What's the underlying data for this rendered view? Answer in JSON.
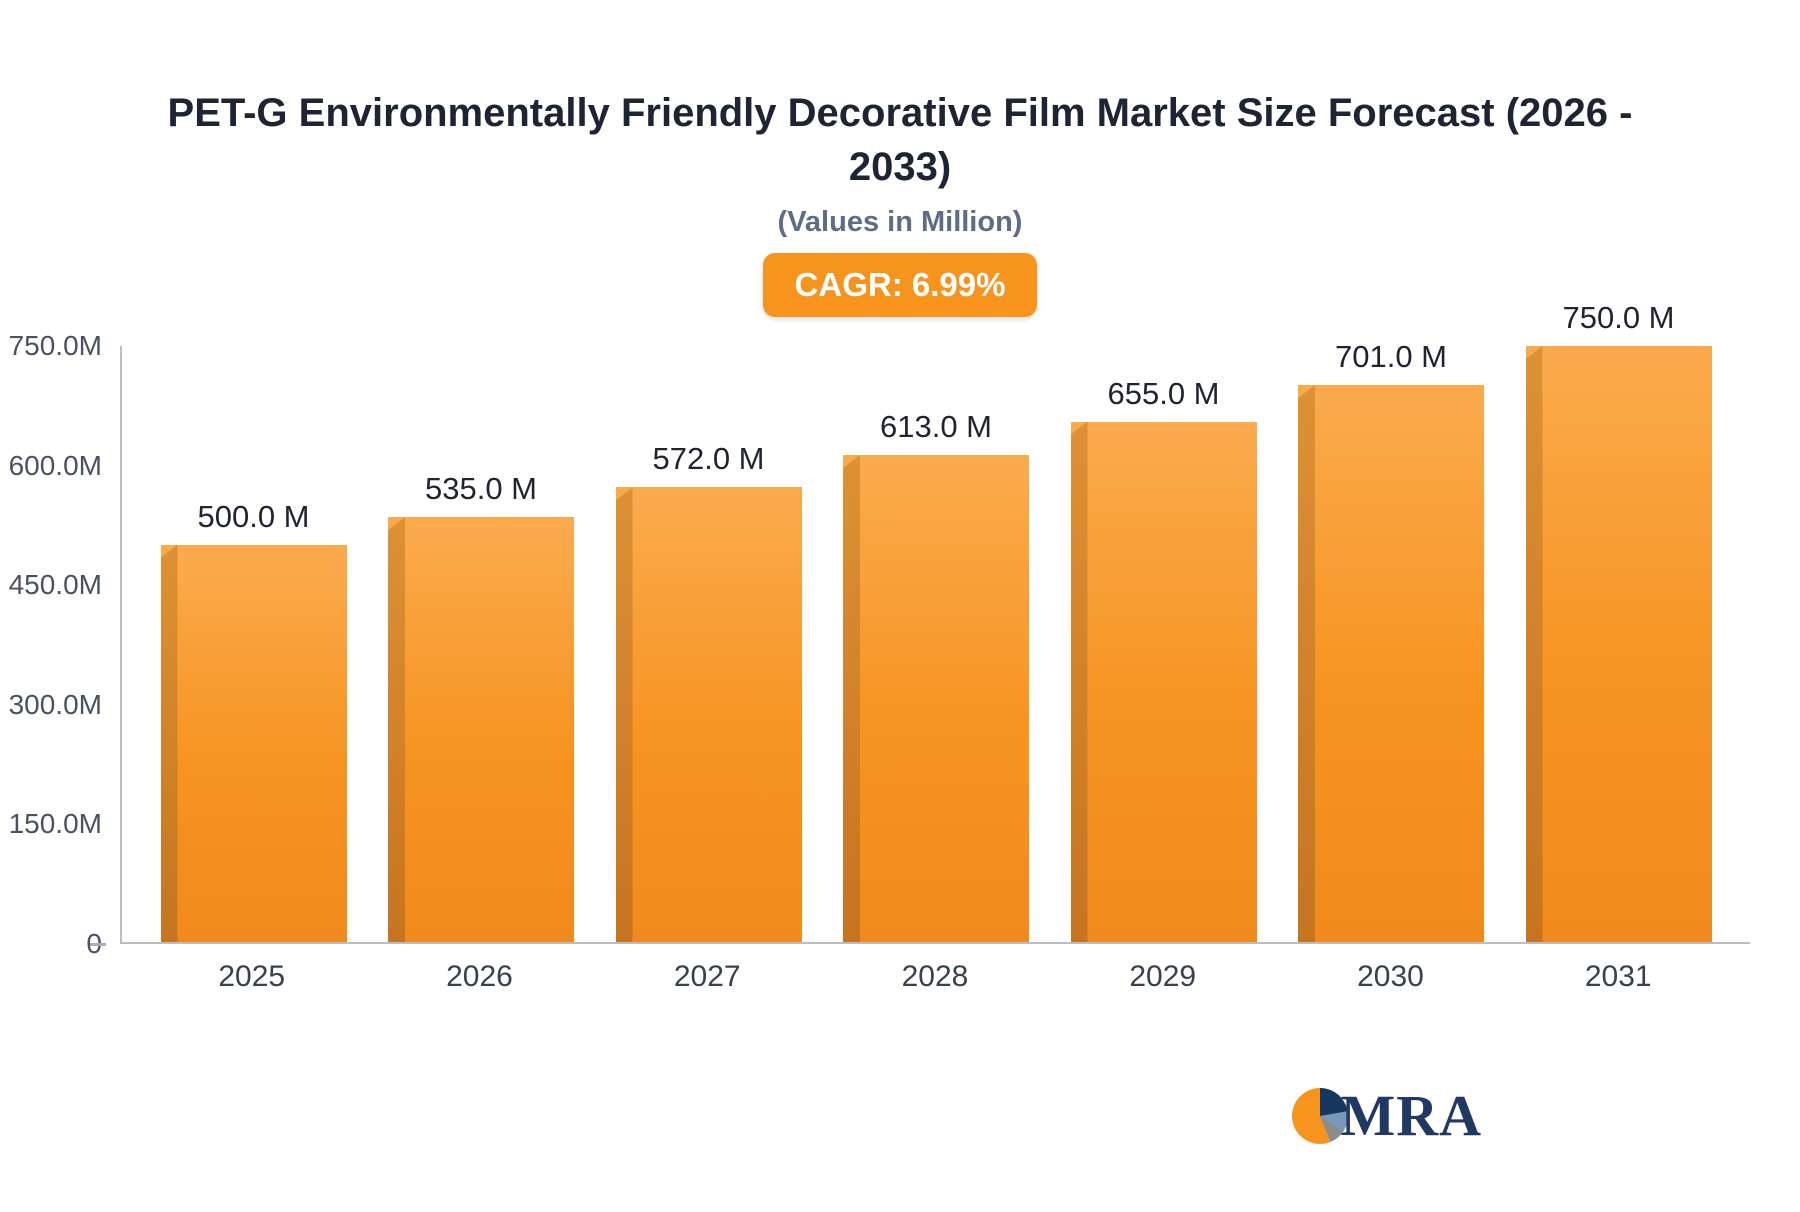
{
  "chart_data": {
    "type": "bar",
    "title": "PET-G Environmentally Friendly Decorative Film Market Size Forecast (2026 - 2033)",
    "subtitle": "(Values in Million)",
    "badge": "CAGR: 6.99%",
    "categories": [
      "2025",
      "2026",
      "2027",
      "2028",
      "2029",
      "2030",
      "2031"
    ],
    "values": [
      500.0,
      535.0,
      572.0,
      613.0,
      655.0,
      701.0,
      750.0
    ],
    "value_labels": [
      "500.0 M",
      "535.0 M",
      "572.0 M",
      "613.0 M",
      "655.0 M",
      "701.0 M",
      "750.0 M"
    ],
    "y_ticks": [
      "750.0M",
      "600.0M",
      "450.0M",
      "300.0M",
      "150.0M",
      "0"
    ],
    "ylim": [
      0,
      750
    ],
    "xlabel": "",
    "ylabel": "",
    "grid": false,
    "legend": false,
    "bar_color": "#F7941E",
    "bar_edge_color": "#C67420",
    "title_color": "#1E2433",
    "subtitle_color": "#5E6C86",
    "badge_color": "#F7941E"
  },
  "logo": {
    "text": "MRA"
  }
}
